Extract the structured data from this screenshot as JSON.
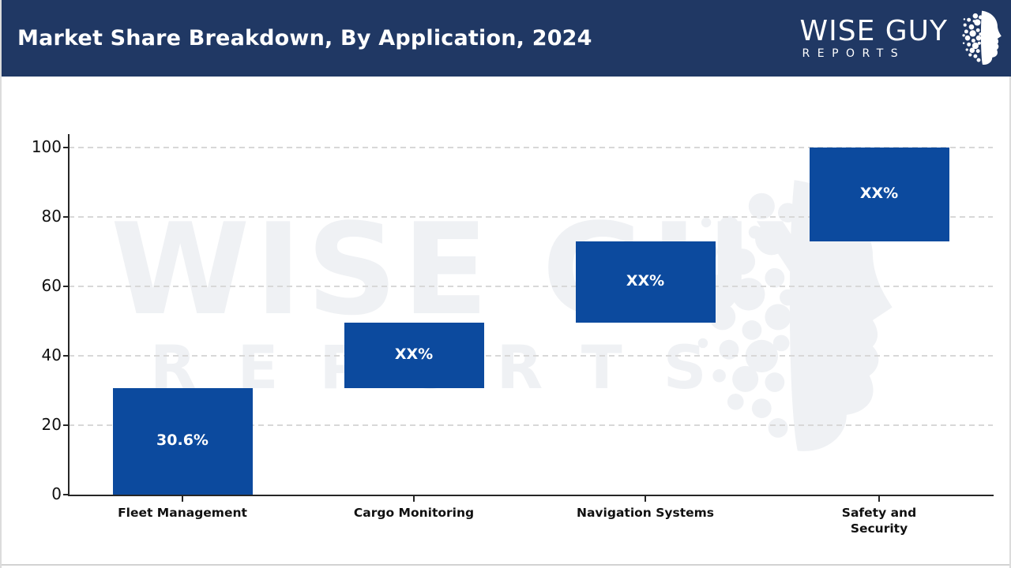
{
  "header": {
    "title": "Market Share Breakdown, By Application, 2024",
    "logo": {
      "name": "WISE GUY",
      "sub": "REPORTS"
    }
  },
  "watermark": {
    "name": "WISE GUY",
    "sub": "REPORTS"
  },
  "chart_data": {
    "type": "bar",
    "subtype": "waterfall",
    "title": "Market Share Breakdown, By Application, 2024",
    "categories": [
      "Fleet Management",
      "Cargo Monitoring",
      "Navigation Systems",
      "Safety and Security"
    ],
    "category_lines": [
      [
        "Fleet Management"
      ],
      [
        "Cargo Monitoring"
      ],
      [
        "Navigation Systems"
      ],
      [
        "Safety and",
        "Security"
      ]
    ],
    "segments": [
      {
        "category": "Fleet Management",
        "start": 0,
        "end": 30.6,
        "label": "30.6%"
      },
      {
        "category": "Cargo Monitoring",
        "start": 30.6,
        "end": 49.5,
        "label": "XX%"
      },
      {
        "category": "Navigation Systems",
        "start": 49.5,
        "end": 72.9,
        "label": "XX%"
      },
      {
        "category": "Safety and Security",
        "start": 72.9,
        "end": 100,
        "label": "XX%"
      }
    ],
    "ylim": [
      0,
      100
    ],
    "yticks": [
      0,
      20,
      40,
      60,
      80,
      100
    ],
    "xlabel": "",
    "ylabel": "",
    "grid": "horizontal-dashed",
    "legend": "none",
    "bar_color": "#0c4a9e",
    "bar_label_color": "#ffffff",
    "axis_color": "#262626",
    "grid_color": "#d8d8d8",
    "header_color": "#203864",
    "watermark_color": "#eff1f4"
  }
}
